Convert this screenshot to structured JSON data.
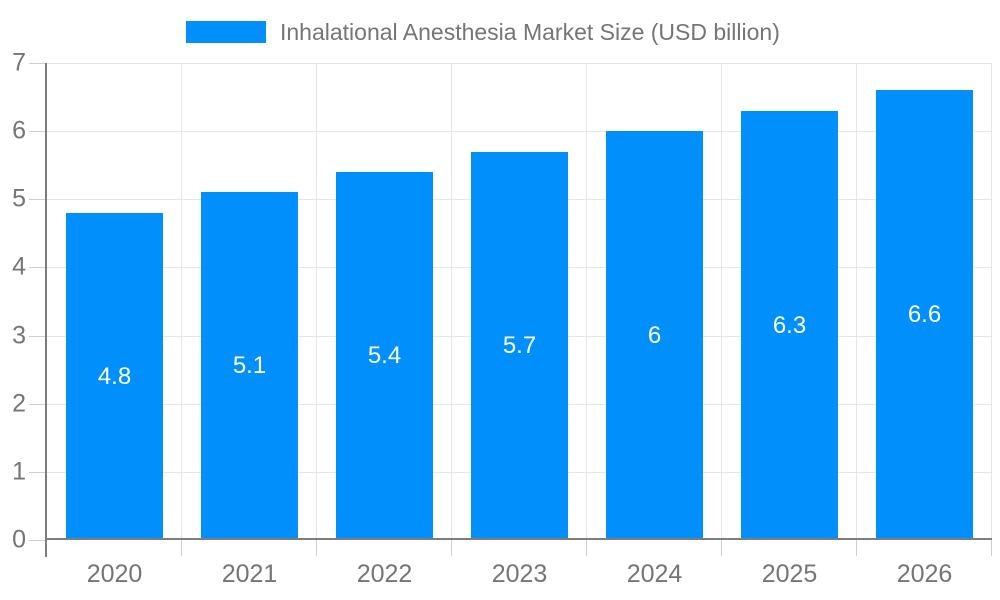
{
  "chart_data": {
    "type": "bar",
    "title": "Inhalational Anesthesia Market Size (USD billion)",
    "legend": {
      "position": "top",
      "label": "Inhalational Anesthesia Market Size (USD billion)"
    },
    "categories": [
      "2020",
      "2021",
      "2022",
      "2023",
      "2024",
      "2025",
      "2026"
    ],
    "values": [
      4.8,
      5.1,
      5.4,
      5.7,
      6,
      6.3,
      6.6
    ],
    "value_labels": [
      "4.8",
      "5.1",
      "5.4",
      "5.7",
      "6",
      "6.3",
      "6.6"
    ],
    "xlabel": "",
    "ylabel": "",
    "ylim": [
      0,
      7
    ],
    "y_ticks": [
      0,
      1,
      2,
      3,
      4,
      5,
      6,
      7
    ],
    "grid": {
      "horizontal": true,
      "vertical": true
    },
    "colors": {
      "bar": "#008ffb",
      "axis_text": "#757575",
      "legend_text": "#757575",
      "value_text": "#ffffff",
      "gridline": "#e6e6e6",
      "tick": "#cfcfcf",
      "axis_line": "#7d7d7d",
      "background": "#ffffff"
    }
  }
}
